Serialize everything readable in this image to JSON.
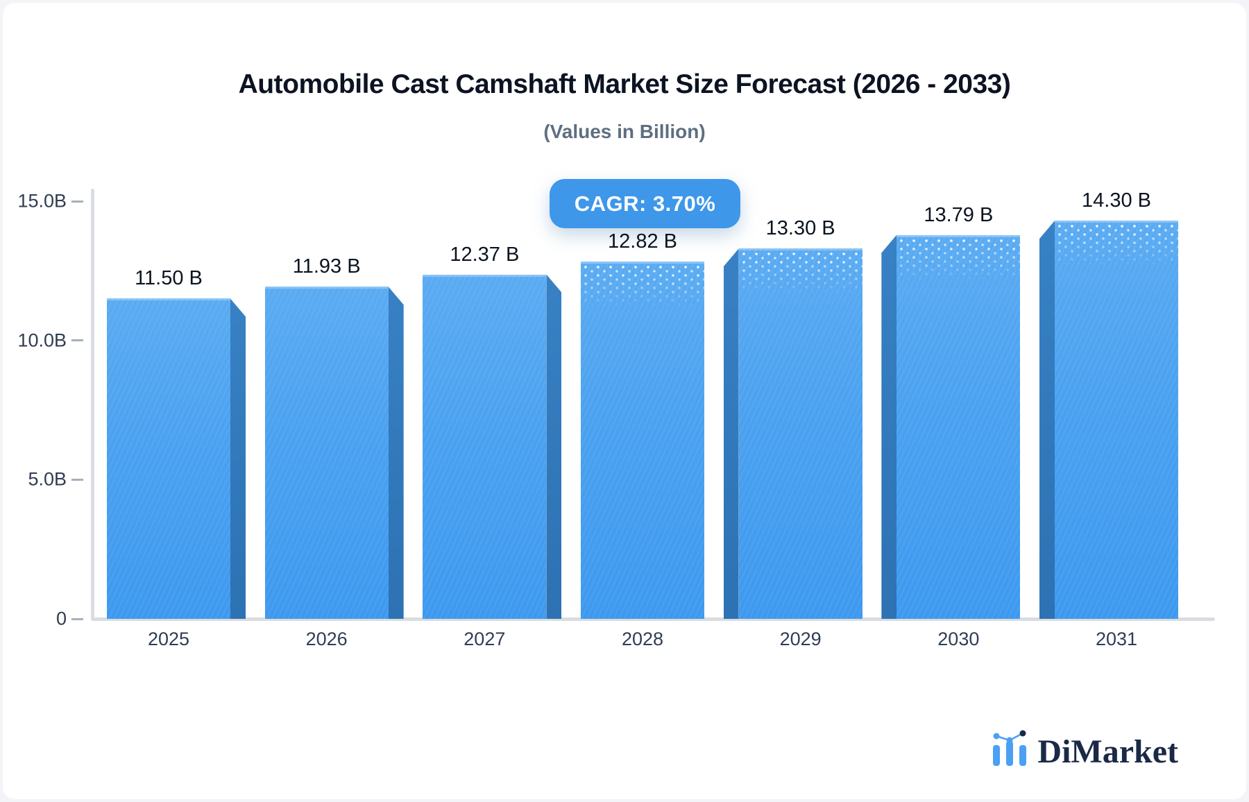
{
  "page": {
    "title": "Automobile Cast Camshaft Market Size Forecast (2026 - 2033)",
    "subtitle": "(Values in Billion)",
    "cagr_badge": "CAGR: 3.70%"
  },
  "brand": {
    "name": "DiMarket"
  },
  "chart_data": {
    "type": "bar",
    "title": "Automobile Cast Camshaft Market Size Forecast (2026 - 2033)",
    "subtitle": "(Values in Billion)",
    "xlabel": "",
    "ylabel": "",
    "unit": "Billion",
    "categories": [
      "2025",
      "2026",
      "2027",
      "2028",
      "2029",
      "2030",
      "2031"
    ],
    "values": [
      11.5,
      11.93,
      12.37,
      12.82,
      13.3,
      13.79,
      14.3
    ],
    "value_labels": [
      "11.50 B",
      "11.93 B",
      "12.37 B",
      "12.82 B",
      "13.30 B",
      "13.79 B",
      "14.30 B"
    ],
    "ylim": [
      0,
      15
    ],
    "yticks": [
      {
        "value": 0,
        "label": "0"
      },
      {
        "value": 5,
        "label": "5.0B"
      },
      {
        "value": 10,
        "label": "10.0B"
      },
      {
        "value": 15,
        "label": "15.0B"
      }
    ],
    "grid": false,
    "legend": "none",
    "cagr": "3.70%",
    "dotted_forecast_categories": [
      "2028",
      "2029",
      "2030",
      "2031"
    ],
    "colors": {
      "bar_face_top": "#5aabf2",
      "bar_face_bottom": "#3d99ef",
      "bar_side": "#2e74b6",
      "badge_background": "#3e97e9",
      "badge_text": "#ffffff",
      "axis_line": "#d9dce1",
      "label_text": "#0b1320"
    }
  }
}
